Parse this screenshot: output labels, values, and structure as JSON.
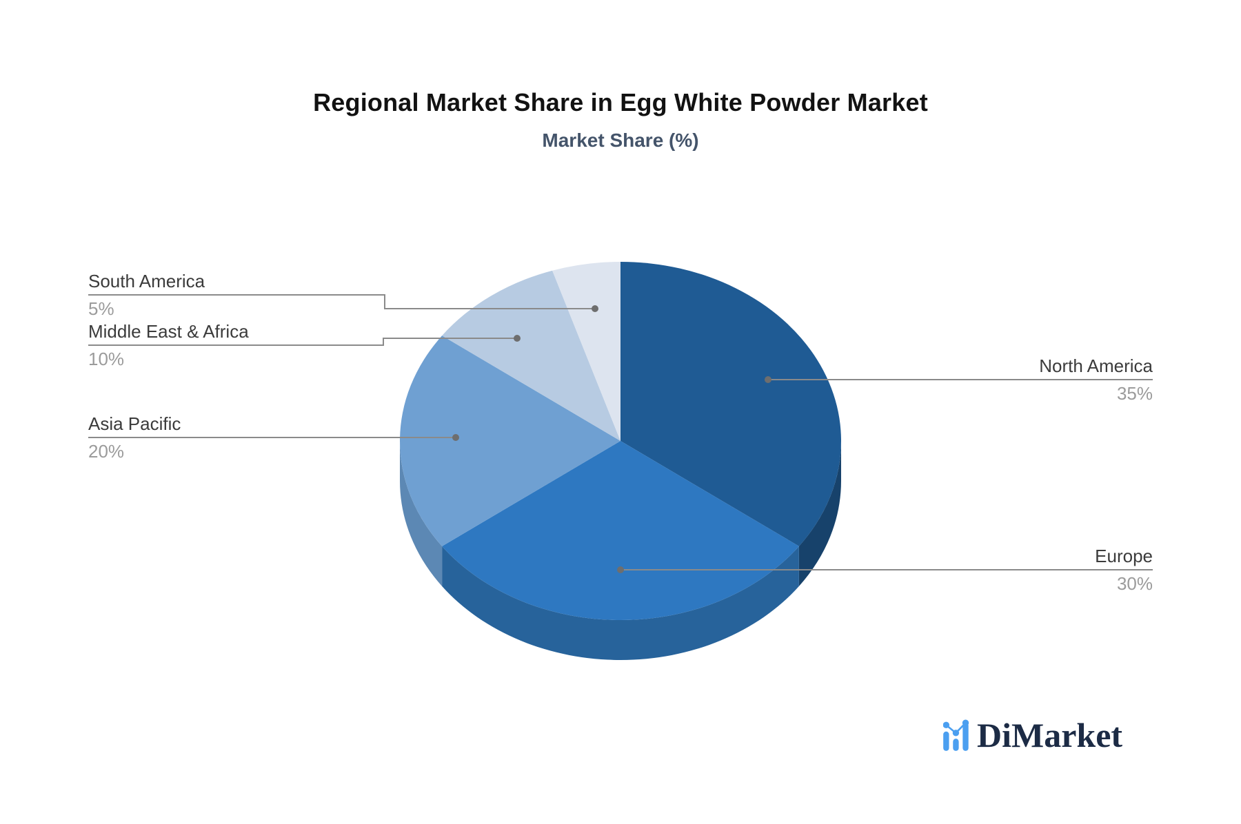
{
  "chart_data": {
    "type": "pie",
    "style": "3d-pie",
    "title": "Regional Market Share in Egg White Powder Market",
    "subtitle": "Market Share (%)",
    "unit": "%",
    "categories": [
      "North America",
      "Europe",
      "Asia Pacific",
      "Middle East & Africa",
      "South America"
    ],
    "values": [
      35,
      30,
      20,
      10,
      5
    ],
    "legend_position": "callout-labels",
    "leader_line_color": "#8A8A8A",
    "leader_dot_color": "#6E6E6E",
    "label_name_color": "#3B3B3B",
    "label_pct_color": "#9B9B9B",
    "regions": [
      {
        "name": "North America",
        "pct": "35%",
        "value": 35,
        "color": "#1F5B94",
        "side_color": "#17426B",
        "label_side": "right"
      },
      {
        "name": "Europe",
        "pct": "30%",
        "value": 30,
        "color": "#2E78C1",
        "side_color": "#27639B",
        "label_side": "right"
      },
      {
        "name": "Asia Pacific",
        "pct": "20%",
        "value": 20,
        "color": "#6FA0D2",
        "side_color": "#5C88B4",
        "label_side": "left"
      },
      {
        "name": "Middle East & Africa",
        "pct": "10%",
        "value": 10,
        "color": "#B7CBE2",
        "side_color": "#9FB4CE",
        "label_side": "left"
      },
      {
        "name": "South America",
        "pct": "5%",
        "value": 5,
        "color": "#DDE4EF",
        "side_color": "#C2CBD9",
        "label_side": "left"
      }
    ]
  },
  "branding": {
    "logo_text": "DiMarket",
    "logo_icon": "bar-line-chart-icon",
    "logo_text_color": "#1C2B45",
    "logo_icon_color": "#4B9FF0"
  }
}
